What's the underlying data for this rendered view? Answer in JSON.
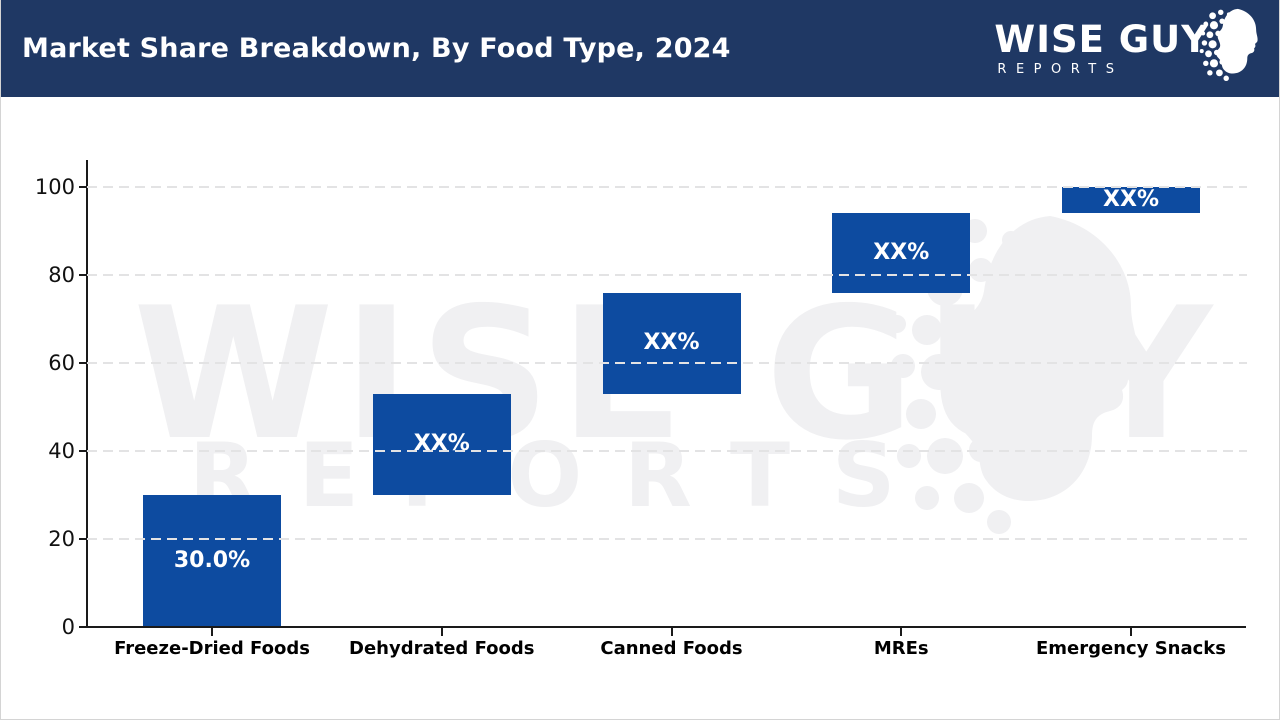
{
  "header": {
    "title": "Market Share Breakdown, By Food Type, 2024",
    "logo": {
      "line1": "WISE GUY",
      "line2": "REPORTS"
    }
  },
  "watermark": {
    "line1": "WISE GUY",
    "line2": "REPORTS"
  },
  "colors": {
    "header_bg": "#1f3864",
    "bar": "#0d4ba0",
    "bar_label": "#ffffff",
    "gridline": "#e3e3e4",
    "axis": "#1a1a1a",
    "watermark": "#f0f0f2",
    "page_border": "#d4d4d4"
  },
  "chart_data": {
    "type": "bar",
    "subtype": "waterfall",
    "title": "Market Share Breakdown, By Food Type, 2024",
    "xlabel": "",
    "ylabel": "",
    "categories": [
      "Freeze-Dried Foods",
      "Dehydrated Foods",
      "Canned Foods",
      "MREs",
      "Emergency Snacks"
    ],
    "segments": [
      {
        "start": 0,
        "end": 30,
        "value": 30,
        "label": "30.0%"
      },
      {
        "start": 30,
        "end": 53,
        "value": 23,
        "label": "XX%"
      },
      {
        "start": 53,
        "end": 76,
        "value": 23,
        "label": "XX%"
      },
      {
        "start": 76,
        "end": 94,
        "value": 18,
        "label": "XX%"
      },
      {
        "start": 94,
        "end": 100,
        "value": 6,
        "label": "XX%"
      }
    ],
    "yticks": [
      0,
      20,
      40,
      60,
      80,
      100
    ],
    "ylim": [
      0,
      106
    ],
    "grid": "horizontal-dashed",
    "legend": "none"
  }
}
